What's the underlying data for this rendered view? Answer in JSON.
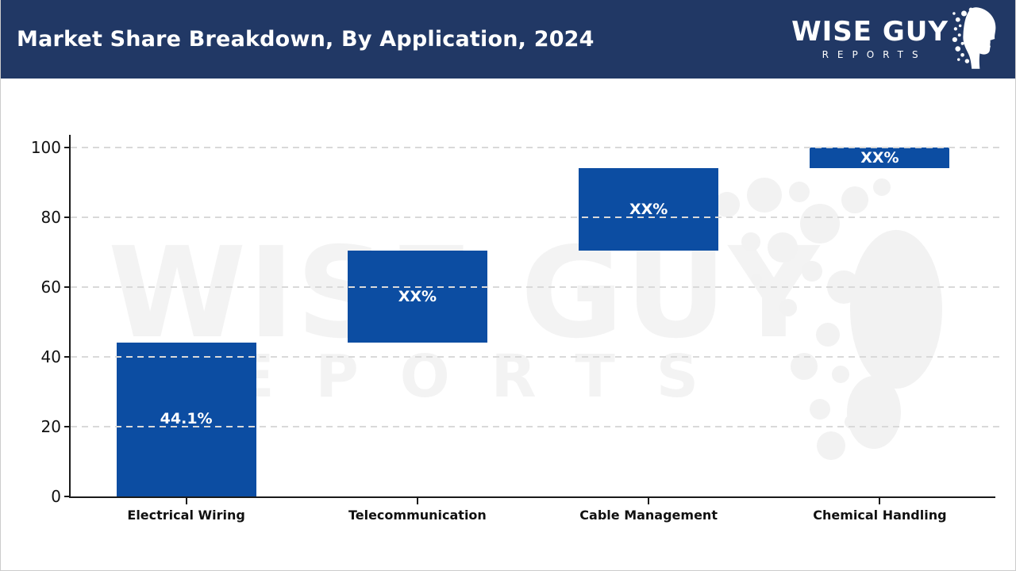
{
  "header": {
    "title": "Market Share Breakdown, By Application, 2024",
    "bg_color": "#213865",
    "logo": {
      "line1": "WISE GUY",
      "line2": "REPORTS",
      "face_icon": "dotted-head-profile-icon"
    }
  },
  "watermark": {
    "line1": "WISE GUY",
    "line2": "REPORTS",
    "face_icon": "dotted-head-profile-watermark"
  },
  "chart_data": {
    "type": "bar",
    "subtype": "waterfall-segments",
    "title": "Market Share Breakdown, By Application, 2024",
    "categories": [
      "Electrical Wiring",
      "Telecommunication",
      "Cable Management",
      "Chemical Handling"
    ],
    "segments": [
      {
        "category": "Electrical Wiring",
        "start": 0,
        "end": 44.1,
        "label": "44.1%"
      },
      {
        "category": "Telecommunication",
        "start": 44.1,
        "end": 70.3,
        "label": "XX%"
      },
      {
        "category": "Cable Management",
        "start": 70.3,
        "end": 93.9,
        "label": "XX%"
      },
      {
        "category": "Chemical Handling",
        "start": 93.9,
        "end": 100,
        "label": "XX%"
      }
    ],
    "ylim": [
      0,
      100
    ],
    "yticks": [
      0,
      20,
      40,
      60,
      80,
      100
    ],
    "xlabel": "",
    "ylabel": "",
    "grid": "dashed-horizontal-over-bars",
    "legend": "none",
    "bar_color": "#0c4da2",
    "label_color": "#ffffff",
    "axis_color": "#1a1a1a",
    "grid_color": "#d9d9d9"
  }
}
